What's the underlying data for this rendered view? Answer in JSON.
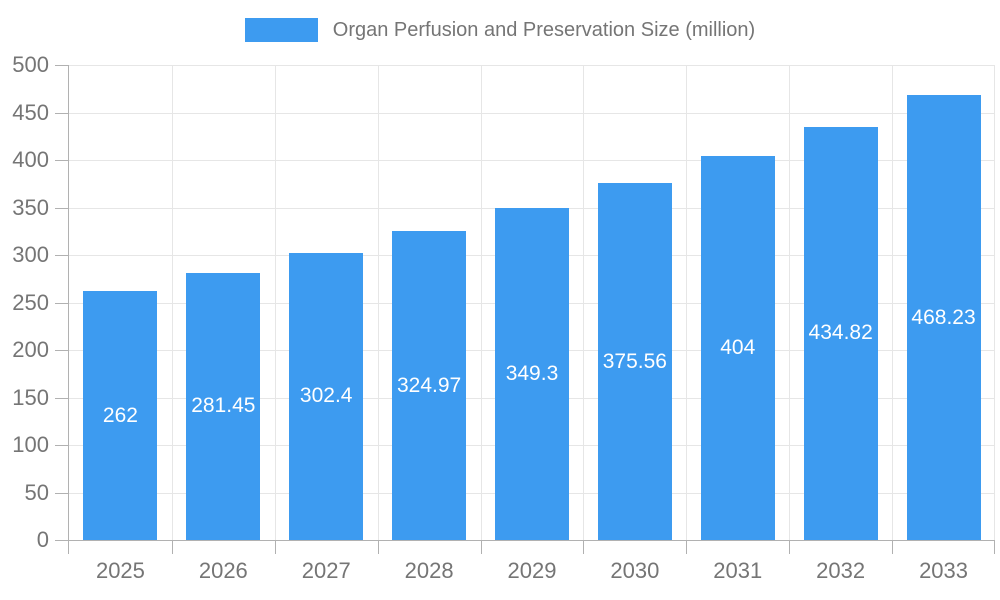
{
  "legend": {
    "label": "Organ Perfusion and Preservation Size (million)"
  },
  "chart_data": {
    "type": "bar",
    "title": "Organ Perfusion and Preservation Size (million)",
    "categories": [
      "2025",
      "2026",
      "2027",
      "2028",
      "2029",
      "2030",
      "2031",
      "2032",
      "2033"
    ],
    "values": [
      262,
      281.45,
      302.4,
      324.97,
      349.3,
      375.56,
      404,
      434.82,
      468.23
    ],
    "xlabel": "",
    "ylabel": "",
    "ylim": [
      0,
      500
    ],
    "ytick_step": 50,
    "grid": true,
    "legend_position": "top",
    "bar_color": "#3D9BF0",
    "value_label_color": "#ffffff",
    "grid_color": "#e6e6e6",
    "axis_color": "#b1b1b1",
    "tick_label_color": "#757575"
  }
}
